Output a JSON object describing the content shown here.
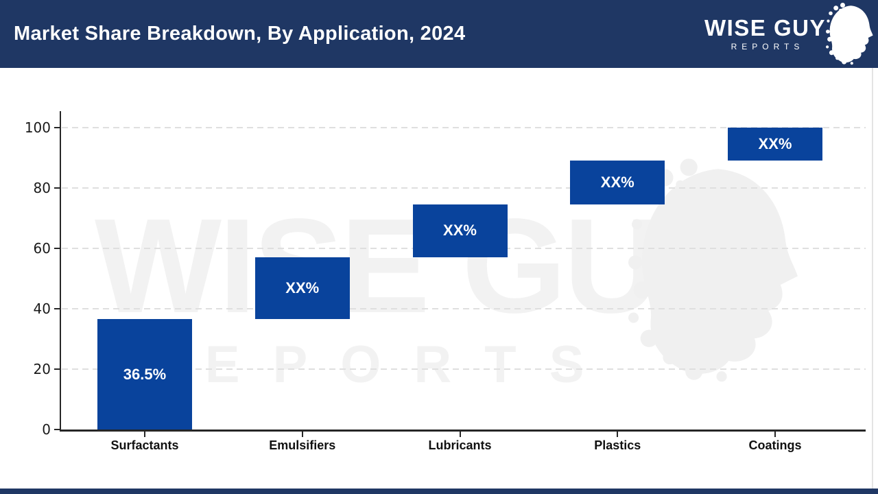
{
  "header": {
    "title": "Market Share Breakdown, By Application, 2024",
    "logo": {
      "line1": "WISE GUY",
      "line2": "REPORTS"
    }
  },
  "watermark": {
    "line1": "WISE GUY",
    "line2": "REPORTS"
  },
  "colors": {
    "header_bg": "#1f3764",
    "bar": "#09439c",
    "bar_label": "#ffffff",
    "axis": "#262626",
    "grid": "#dfdfdf",
    "watermark": "#f2f2f2"
  },
  "chart_data": {
    "type": "bar",
    "subtype": "waterfall",
    "title": "Market Share Breakdown, By Application, 2024",
    "xlabel": "",
    "ylabel": "",
    "categories": [
      "Surfactants",
      "Emulsifiers",
      "Lubricants",
      "Plastics",
      "Coatings"
    ],
    "segments": [
      {
        "category": "Surfactants",
        "start": 0,
        "end": 36.5,
        "label": "36.5%"
      },
      {
        "category": "Emulsifiers",
        "start": 36.5,
        "end": 57.1,
        "label": "XX%"
      },
      {
        "category": "Lubricants",
        "start": 57.1,
        "end": 74.5,
        "label": "XX%"
      },
      {
        "category": "Plastics",
        "start": 74.5,
        "end": 89.0,
        "label": "XX%"
      },
      {
        "category": "Coatings",
        "start": 89.0,
        "end": 100.0,
        "label": "XX%"
      }
    ],
    "ylim": [
      0,
      105
    ],
    "yticks": [
      0,
      20,
      40,
      60,
      80,
      100
    ],
    "grid": "dashed-horizontal",
    "legend": "none"
  }
}
